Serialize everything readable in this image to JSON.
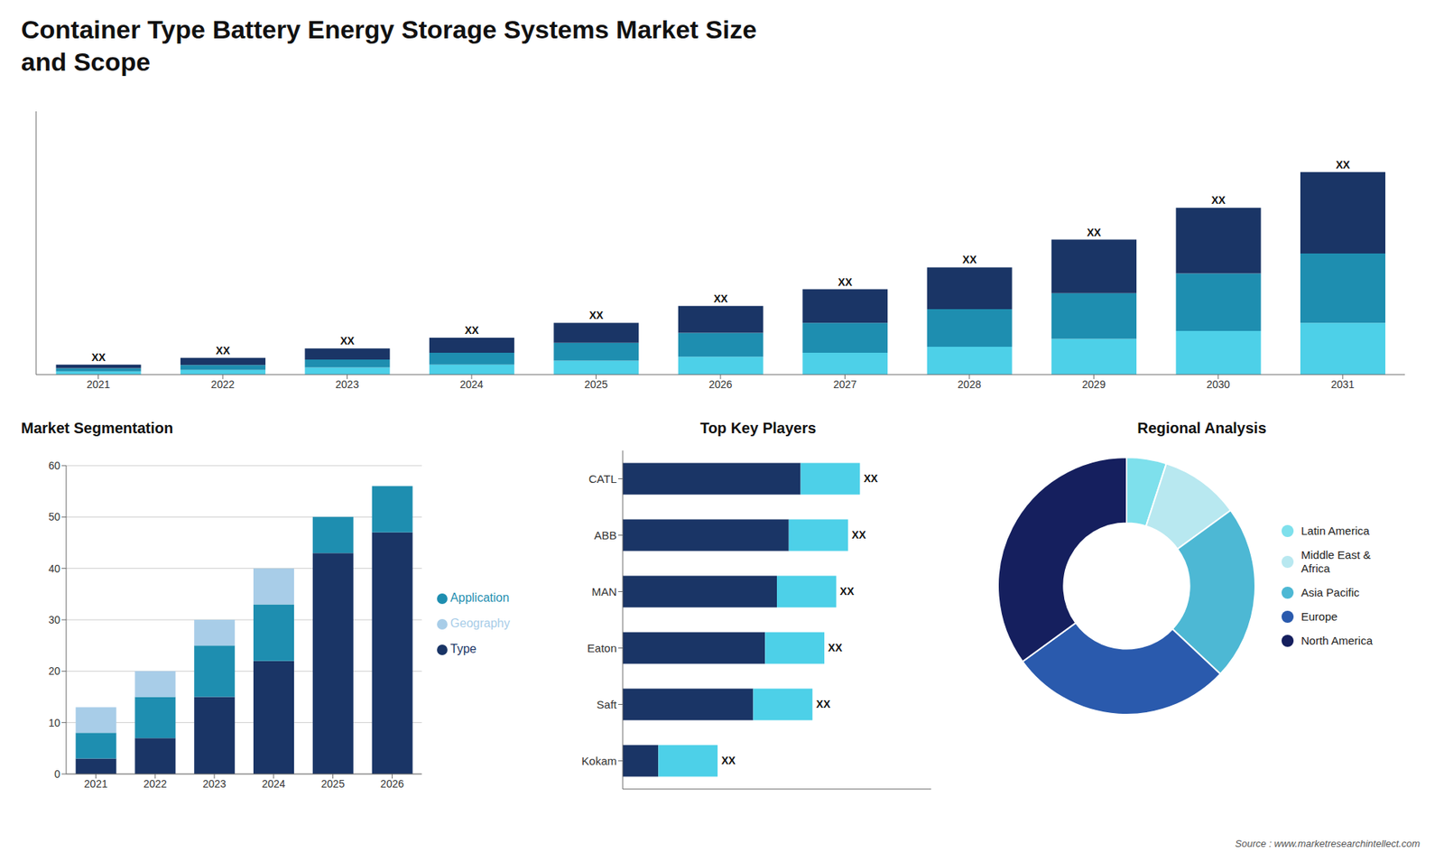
{
  "chart_data": [
    {
      "type": "bar",
      "title": "Container Type Battery Energy Storage Systems Market Size\nand Scope",
      "stacked": true,
      "categories": [
        "2021",
        "2022",
        "2023",
        "2024",
        "2025",
        "2026",
        "2027",
        "2028",
        "2029",
        "2030",
        "2031"
      ],
      "series": [
        {
          "color": "#4dd0e8",
          "values": [
            0.8,
            1.2,
            1.8,
            2.5,
            3.5,
            4.5,
            5.5,
            7.0,
            9.0,
            11.0,
            13.0
          ]
        },
        {
          "color": "#1e8eb0",
          "values": [
            0.8,
            1.2,
            2.0,
            3.0,
            4.5,
            6.0,
            7.5,
            9.5,
            11.5,
            14.5,
            17.5
          ]
        },
        {
          "color": "#1a3566",
          "values": [
            0.9,
            1.8,
            2.8,
            3.8,
            5.0,
            6.8,
            8.5,
            10.5,
            13.5,
            16.5,
            20.5
          ],
          "value_labels": [
            "XX",
            "XX",
            "XX",
            "XX",
            "XX",
            "XX",
            "XX",
            "XX",
            "XX",
            "XX",
            "XX"
          ]
        }
      ],
      "ylim": [
        0,
        66.3
      ],
      "tick_labels": "x",
      "grid": false
    },
    {
      "type": "bar",
      "title": "Market Segmentation",
      "stacked": true,
      "categories": [
        "2021",
        "2022",
        "2023",
        "2024",
        "2025",
        "2026"
      ],
      "series": [
        {
          "name": "Type",
          "color": "#1a3566",
          "values": [
            3,
            7,
            15,
            22,
            43,
            47
          ]
        },
        {
          "name": "Application",
          "color": "#1e8eb0",
          "values": [
            5,
            8,
            10,
            11,
            7,
            9
          ]
        },
        {
          "name": "Geography",
          "color": "#a8cde8",
          "values": [
            5,
            5,
            5,
            7,
            0,
            0
          ]
        }
      ],
      "ylim": [
        0,
        60
      ],
      "yticks": [
        0,
        10,
        20,
        30,
        40,
        50,
        60
      ],
      "grid": true,
      "legend": "right"
    },
    {
      "type": "bar",
      "title": "Top Key Players",
      "orientation": "horizontal",
      "stacked": true,
      "categories": [
        "CATL",
        "ABB",
        "MAN",
        "Eaton",
        "Saft",
        "Kokam"
      ],
      "series": [
        {
          "color": "#1a3566",
          "values": [
            7.5,
            7.0,
            6.5,
            6.0,
            5.5,
            1.5
          ]
        },
        {
          "color": "#4dd0e8",
          "values": [
            2.5,
            2.5,
            2.5,
            2.5,
            2.5,
            2.5
          ],
          "value_labels": [
            "XX",
            "XX",
            "XX",
            "XX",
            "XX",
            "XX"
          ]
        }
      ],
      "xlim": [
        0,
        13
      ],
      "tick_labels": "y",
      "grid": false
    },
    {
      "type": "pie",
      "title": "Regional Analysis",
      "categories": [
        "Latin America",
        "Middle East &\nAfrica",
        "Asia Pacific",
        "Europe",
        "North America"
      ],
      "values": [
        5,
        10,
        22,
        28,
        35
      ],
      "colors": [
        "#7ee0ec",
        "#b8e8f0",
        "#4db8d4",
        "#2a5aad",
        "#151f5e"
      ],
      "legend": "right",
      "annotations": [
        "Source : www.marketresearchintellect.com"
      ]
    }
  ]
}
